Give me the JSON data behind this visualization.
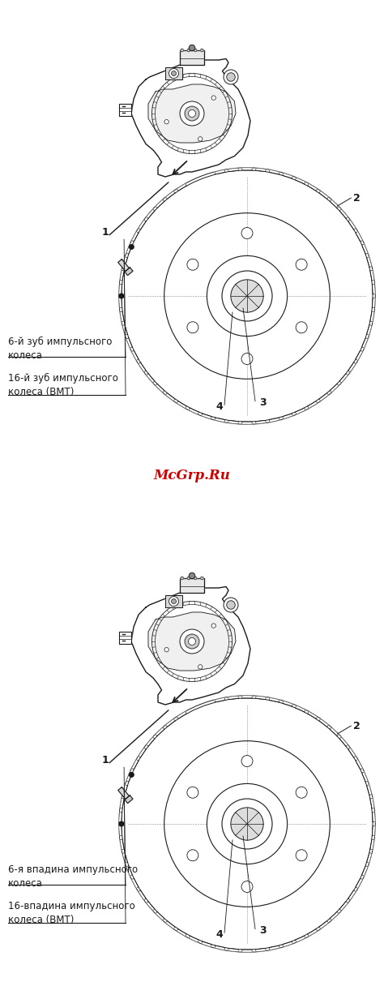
{
  "watermark": "McGrp.Ru",
  "watermark_color": "#cc0000",
  "background_color": "#ffffff",
  "line_color": "#1a1a1a",
  "panels": [
    {
      "label1_text": "6-й зуб импульсного\nколеса",
      "label2_text": "16-й зуб импульсного\nколеса (ВМТ)"
    },
    {
      "label1_text": "6-я впадина импульсного\nколеса",
      "label2_text": "16-впадина импульсного\nколеса (ВМТ)"
    }
  ],
  "font_size_labels": 8.5,
  "font_size_numbers": 9,
  "font_size_watermark": 12
}
